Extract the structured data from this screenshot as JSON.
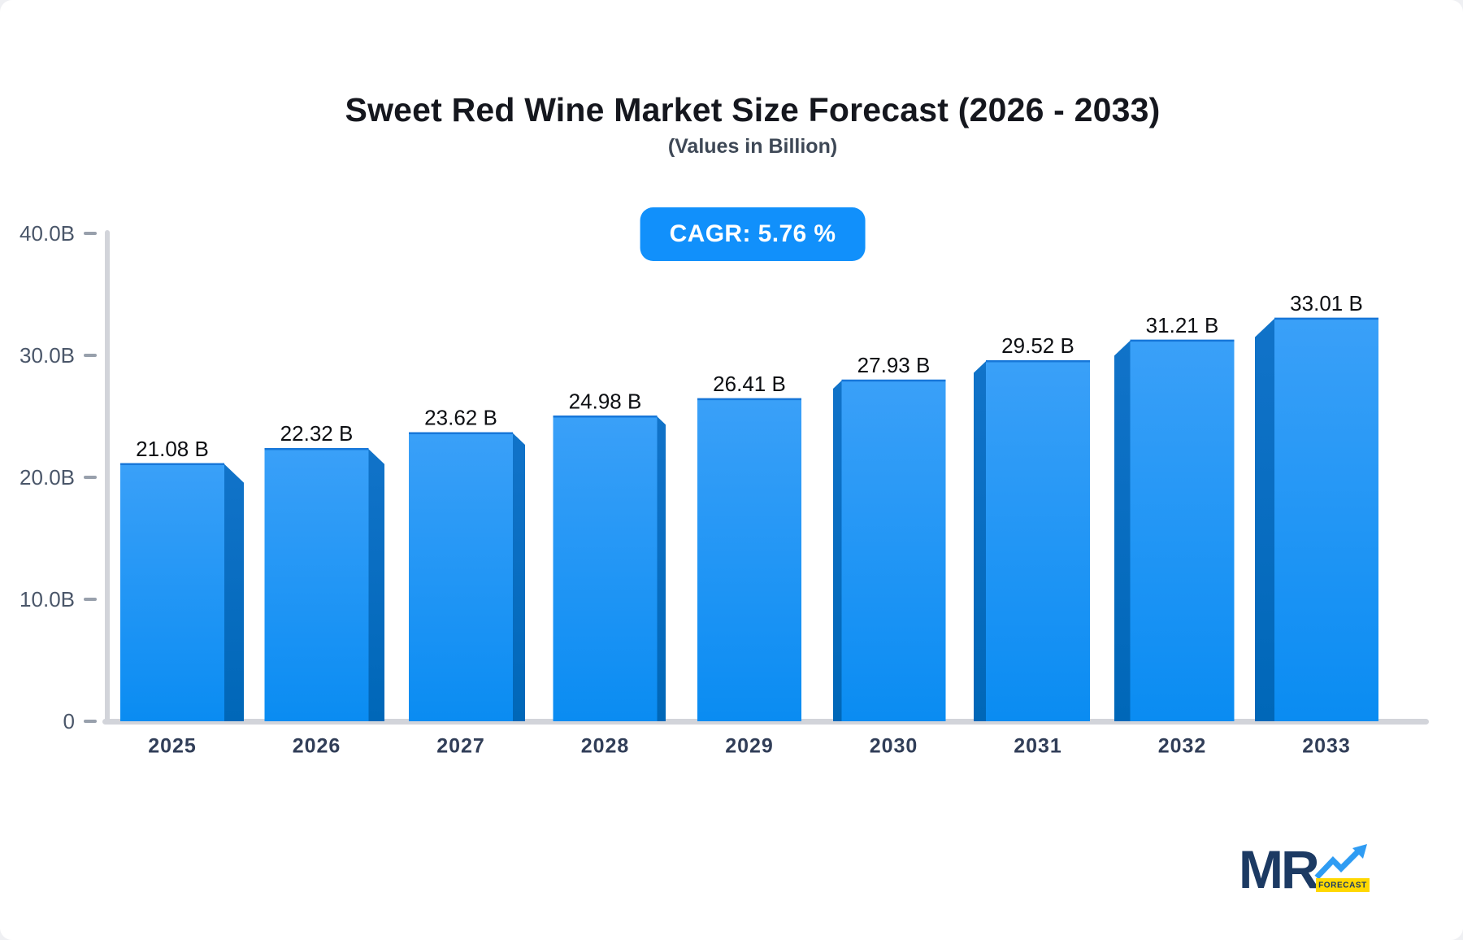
{
  "header": {
    "title": "Sweet Red Wine Market Size Forecast (2026 - 2033)",
    "subtitle": "(Values in Billion)",
    "cagr_badge": "CAGR: 5.76 %",
    "badge_color": "#1190fb"
  },
  "chart_data": {
    "type": "bar",
    "title": "Sweet Red Wine Market Size Forecast (2026 - 2033)",
    "subtitle": "(Values in Billion)",
    "annotation": "CAGR: 5.76 %",
    "categories": [
      "2025",
      "2026",
      "2027",
      "2028",
      "2029",
      "2030",
      "2031",
      "2032",
      "2033"
    ],
    "values": [
      21.08,
      22.32,
      23.62,
      24.98,
      26.41,
      27.93,
      29.52,
      31.21,
      33.01
    ],
    "value_labels": [
      "21.08 B",
      "22.32 B",
      "23.62 B",
      "24.98 B",
      "26.41 B",
      "27.93 B",
      "29.52 B",
      "31.21 B",
      "33.01 B"
    ],
    "xlabel": "",
    "ylabel": "",
    "ylim": [
      0,
      40
    ],
    "yticks": [
      0,
      10,
      20,
      30,
      40
    ],
    "ytick_labels": [
      "0",
      "10.0B",
      "20.0B",
      "30.0B",
      "40.0B"
    ],
    "grid": false,
    "legend": false,
    "bar_style": "3d-front-side",
    "colors": {
      "face_top": "#3aa0f8",
      "face_bottom": "#0a8cf2",
      "side_top": "#1173c9",
      "side_bottom": "#0067b8",
      "top_edge": "#1777d9",
      "axis": "#d2d4da",
      "tick": "#98a0ac",
      "ytick_text": "#4a5669",
      "xtick_text": "#313e58",
      "value_label": "#0d0f13"
    }
  },
  "logo": {
    "mr": "MR",
    "forecast": "FORECAST",
    "navy": "#1c3a63",
    "blue": "#2f9cf3",
    "yellow": "#ffd800"
  }
}
